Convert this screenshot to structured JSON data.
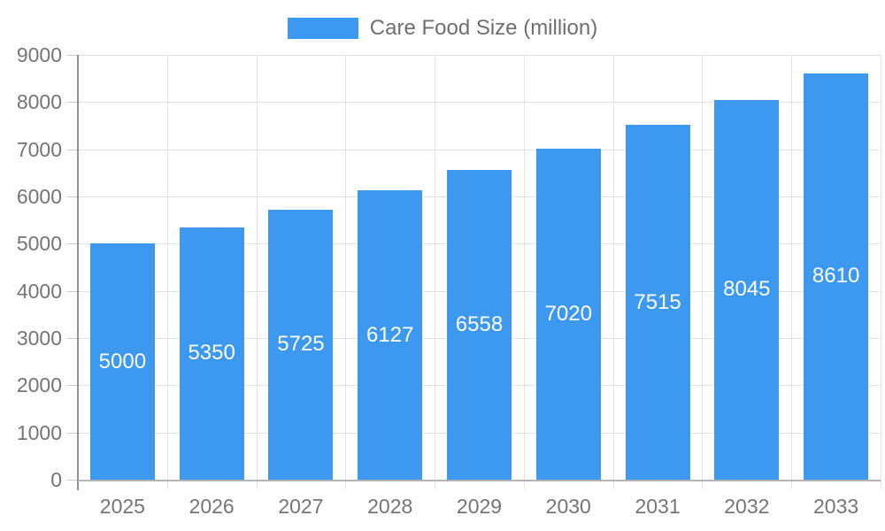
{
  "legend": {
    "items": [
      {
        "label": "Care Food Size (million)",
        "color": "#3D99F0"
      }
    ]
  },
  "colors": {
    "bar": "#3D99F0",
    "value_label": "#ffffff",
    "axis_text": "#757575",
    "legend_text": "#6f6f6f",
    "gridline": "#e3e3e3",
    "tick": "#c9c9c9",
    "y_axis_line": "#8f8f8f",
    "x_axis_line": "#b3b3b3",
    "background": "#ffffff"
  },
  "chart_data": {
    "type": "bar",
    "title": "",
    "legend_position": "top",
    "categories": [
      "2025",
      "2026",
      "2027",
      "2028",
      "2029",
      "2030",
      "2031",
      "2032",
      "2033"
    ],
    "series": [
      {
        "name": "Care Food Size (million)",
        "color": "#3D99F0",
        "values": [
          5000,
          5350,
          5725,
          6127,
          6558,
          7020,
          7515,
          8045,
          8610
        ]
      }
    ],
    "bar_labels": {
      "show": true,
      "position": "middle",
      "color": "#ffffff"
    },
    "xlabel": "",
    "ylabel": "",
    "ylim": [
      0,
      9000
    ],
    "yticks": [
      0,
      1000,
      2000,
      3000,
      4000,
      5000,
      6000,
      7000,
      8000,
      9000
    ],
    "grid": {
      "horizontal": true,
      "vertical": true
    }
  }
}
